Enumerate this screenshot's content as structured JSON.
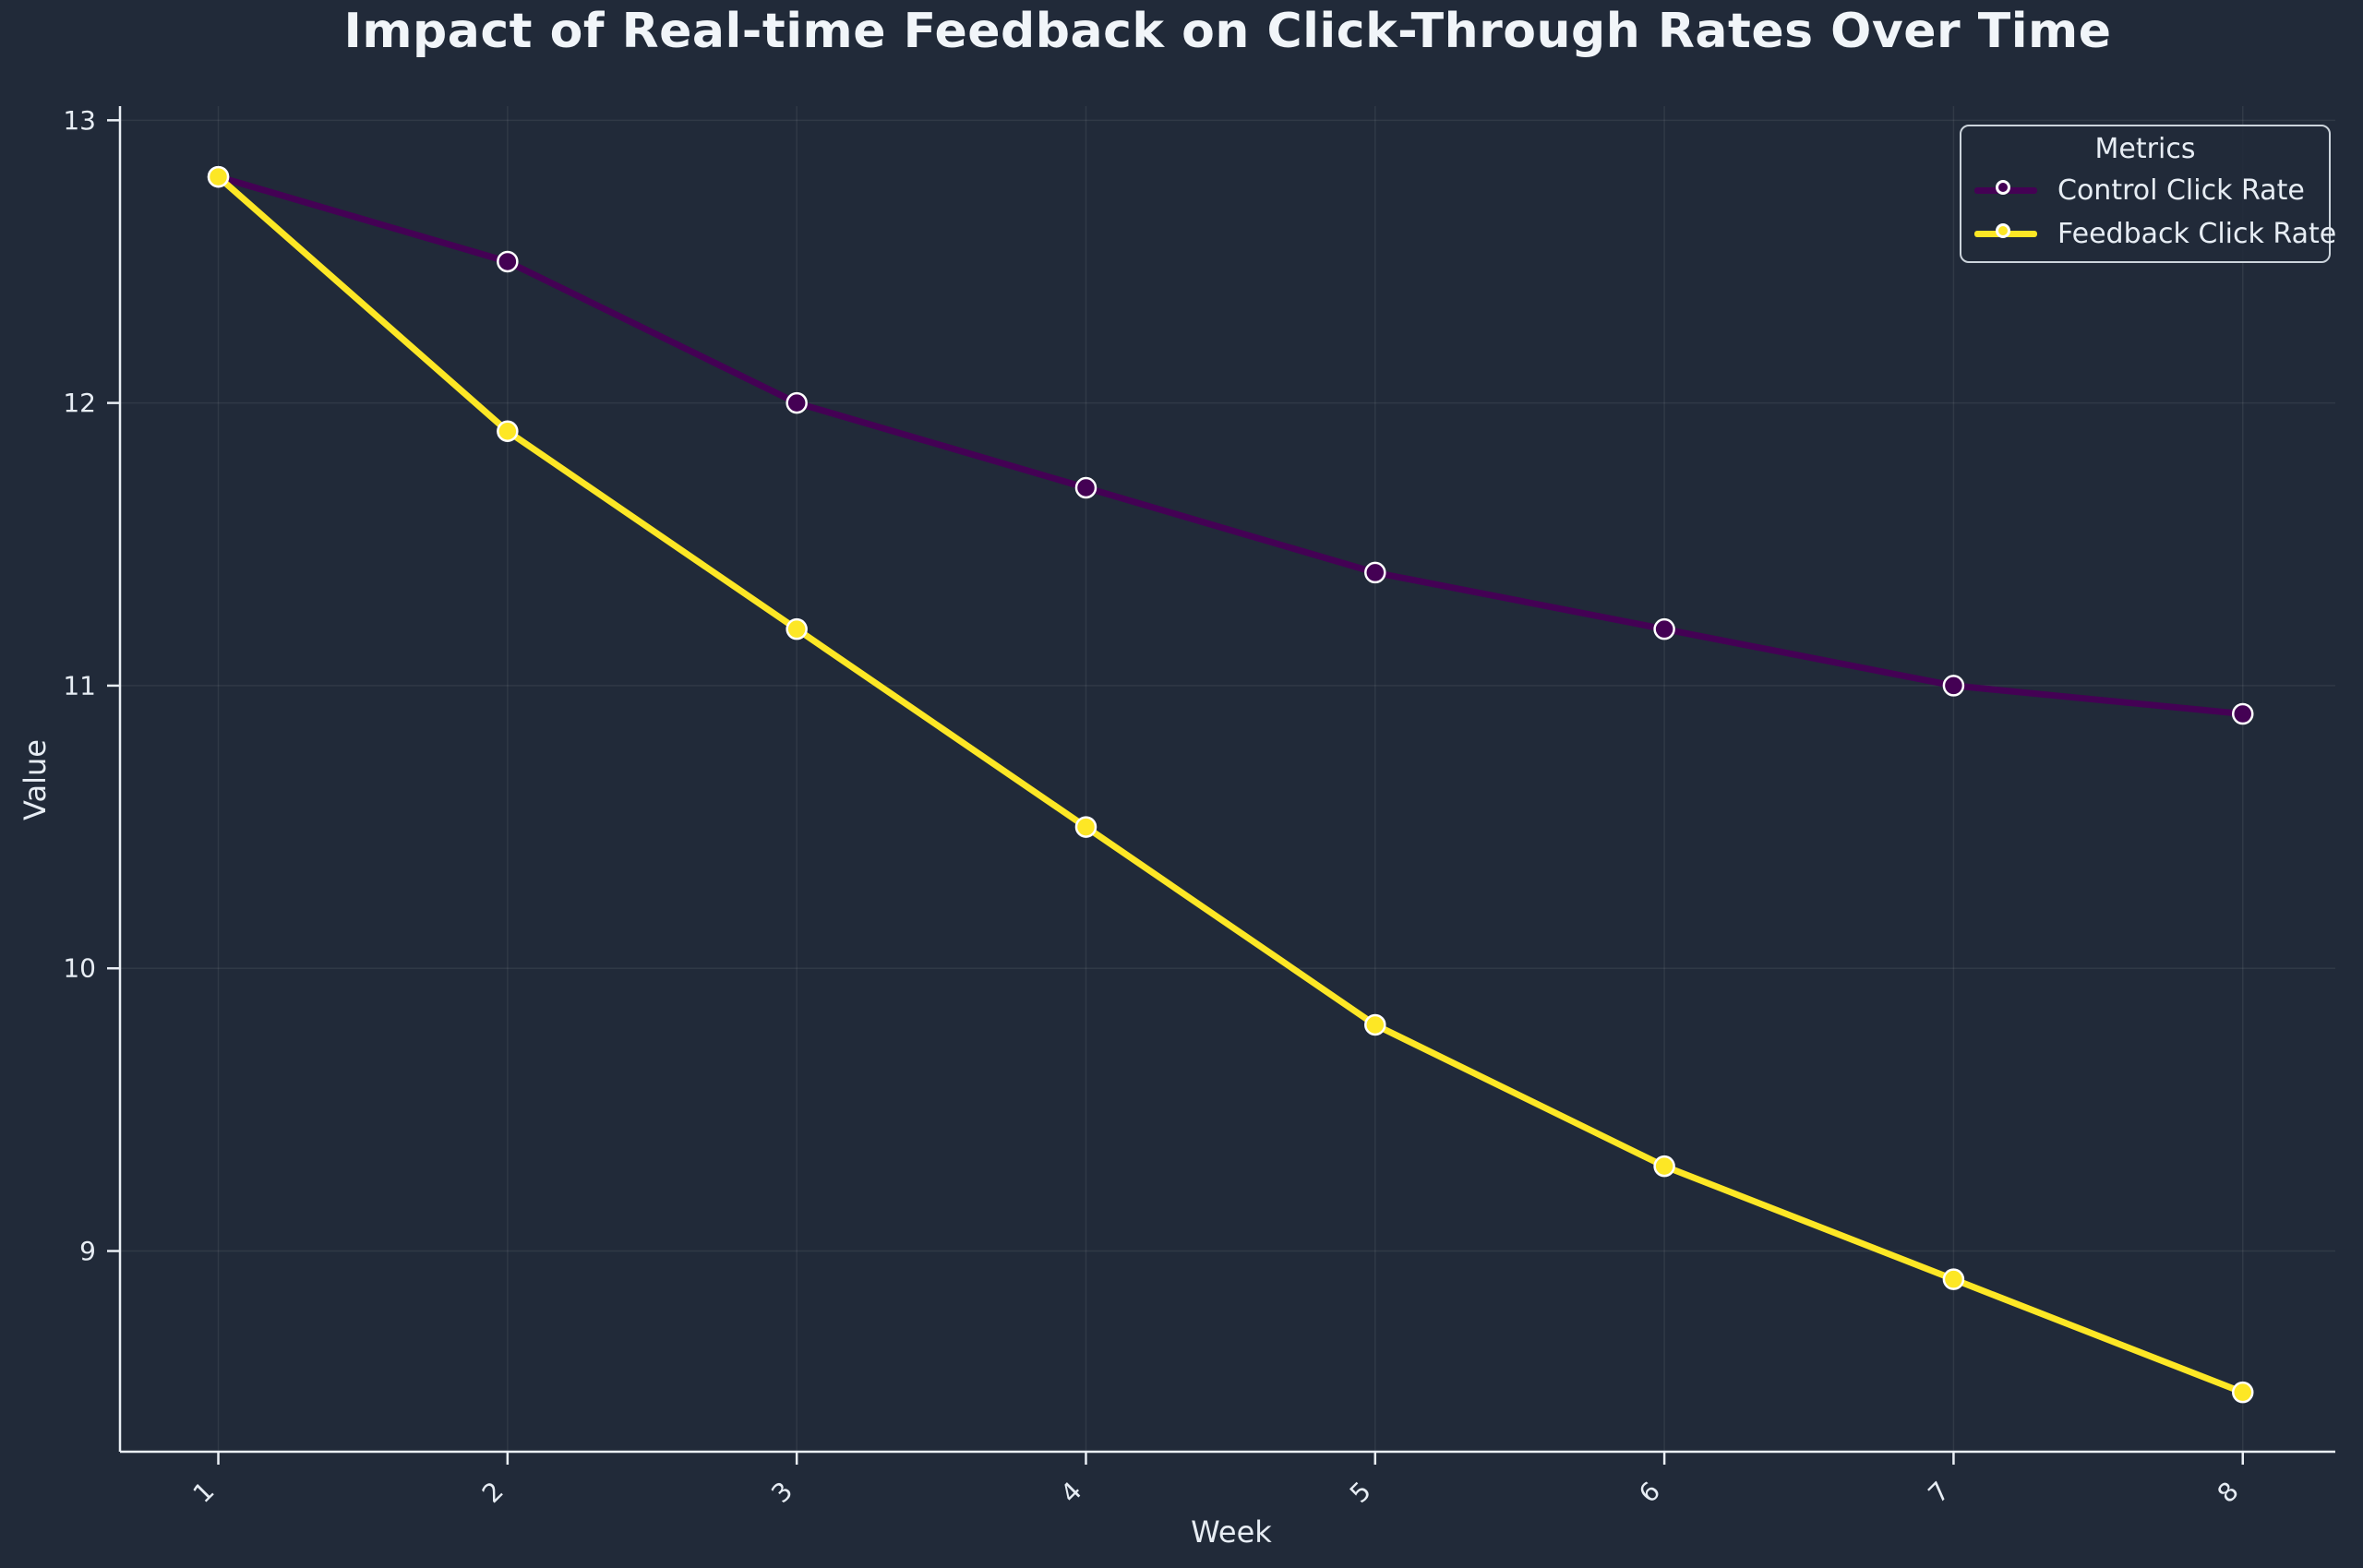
{
  "chart_data": {
    "type": "line",
    "title": "Impact of Real-time Feedback on Click-Through Rates Over Time",
    "xlabel": "Week",
    "ylabel": "Value",
    "x": [
      1,
      2,
      3,
      4,
      5,
      6,
      7,
      8
    ],
    "series": [
      {
        "name": "Control Click Rate",
        "values": [
          12.8,
          12.5,
          12.0,
          11.7,
          11.4,
          11.2,
          11.0,
          10.9
        ],
        "color": "#440154",
        "marker": "circle"
      },
      {
        "name": "Feedback Click Rate",
        "values": [
          12.8,
          11.9,
          11.2,
          10.5,
          9.8,
          9.3,
          8.9,
          8.5
        ],
        "color": "#fde725",
        "marker": "circle"
      }
    ],
    "legend": {
      "title": "Metrics",
      "position": "upper-right"
    },
    "xticks": [
      1,
      2,
      3,
      4,
      5,
      6,
      7,
      8
    ],
    "yticks": [
      9,
      10,
      11,
      12,
      13
    ],
    "xlim": [
      0.66,
      8.32
    ],
    "ylim": [
      8.29,
      13.05
    ],
    "grid": true,
    "xtick_rotation": 45
  },
  "style": {
    "background": "#212a39",
    "text_color": "#e7edf4",
    "spine_color": "#eaeff5",
    "grid_color": "rgba(255,255,255,0.07)",
    "marker_edge": "#ffffff",
    "legend_border": "#ccd4dc"
  }
}
